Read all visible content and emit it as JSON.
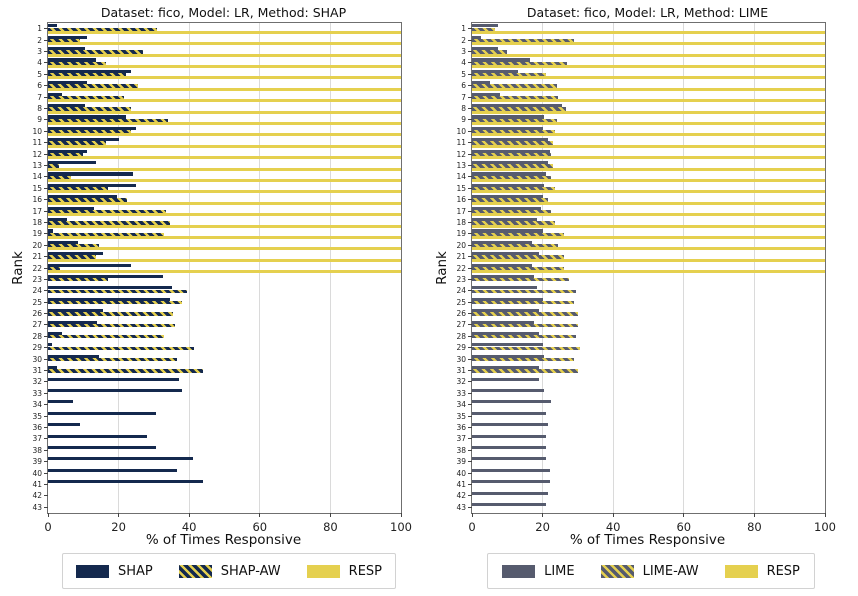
{
  "figure": {
    "background": "#ffffff",
    "colors": {
      "shap_navy": "#14294e",
      "lime_slate": "#565b6e",
      "resp_yellow": "#e5d04f",
      "gridline": "#dadada",
      "axis_border": "#6f6f6f"
    }
  },
  "chart_data": [
    {
      "type": "bar",
      "orientation": "horizontal",
      "title": "Dataset: fico, Model: LR, Method: SHAP",
      "xlabel": "% of Times Responsive",
      "ylabel": "Rank",
      "xlim": [
        0,
        100
      ],
      "xticks": [
        0,
        20,
        40,
        60,
        80,
        100
      ],
      "grid": "vertical",
      "legend_position": "bottom",
      "categories": [
        "1",
        "2",
        "3",
        "4",
        "5",
        "6",
        "7",
        "8",
        "9",
        "10",
        "11",
        "12",
        "13",
        "14",
        "15",
        "16",
        "17",
        "18",
        "19",
        "20",
        "21",
        "22",
        "23",
        "24",
        "25",
        "26",
        "27",
        "28",
        "29",
        "30",
        "31",
        "32",
        "33",
        "34",
        "35",
        "36",
        "37",
        "38",
        "39",
        "40",
        "41",
        "42",
        "43"
      ],
      "series": [
        {
          "name": "SHAP",
          "style": "solid",
          "color": "#14294e",
          "values": [
            2.5,
            11,
            10.5,
            13.5,
            23.5,
            11,
            4,
            10.5,
            22,
            25,
            20,
            11,
            13.5,
            24,
            25,
            19.5,
            13,
            5.5,
            1.5,
            8.5,
            15.5,
            23.5,
            32.5,
            35,
            34.5,
            15.5,
            14,
            4,
            1,
            14.5,
            2.5,
            37,
            38,
            7,
            30.5,
            9,
            28,
            30.5,
            41,
            36.5,
            44,
            0,
            0
          ]
        },
        {
          "name": "SHAP-AW",
          "style": "hatched",
          "color": "#14294e",
          "stripe": "#e5d04f",
          "values": [
            31,
            9,
            27,
            16.5,
            22,
            25.5,
            21.5,
            23.5,
            34,
            23.5,
            16.5,
            10,
            3,
            6.5,
            17,
            22.5,
            33.5,
            34.5,
            33,
            14.5,
            13.5,
            3.5,
            17,
            39.5,
            38,
            35.5,
            36,
            33,
            41.5,
            36.5,
            44,
            0,
            0,
            0,
            0,
            0,
            0,
            0,
            0,
            0,
            0,
            0,
            0
          ]
        },
        {
          "name": "RESP",
          "style": "solid",
          "color": "#e5d04f",
          "values": [
            100,
            100,
            100,
            100,
            100,
            100,
            100,
            100,
            100,
            100,
            100,
            100,
            100,
            100,
            100,
            100,
            100,
            100,
            100,
            100,
            100,
            100,
            0,
            0,
            0,
            0,
            0,
            0,
            0,
            0,
            0,
            0,
            0,
            0,
            0,
            0,
            0,
            0,
            0,
            0,
            0,
            0,
            0
          ]
        }
      ]
    },
    {
      "type": "bar",
      "orientation": "horizontal",
      "title": "Dataset: fico, Model: LR, Method: LIME",
      "xlabel": "% of Times Responsive",
      "ylabel": "Rank",
      "xlim": [
        0,
        100
      ],
      "xticks": [
        0,
        20,
        40,
        60,
        80,
        100
      ],
      "grid": "vertical",
      "legend_position": "bottom",
      "categories": [
        "1",
        "2",
        "3",
        "4",
        "5",
        "6",
        "7",
        "8",
        "9",
        "10",
        "11",
        "12",
        "13",
        "14",
        "15",
        "16",
        "17",
        "18",
        "19",
        "20",
        "21",
        "22",
        "23",
        "24",
        "25",
        "26",
        "27",
        "28",
        "29",
        "30",
        "31",
        "32",
        "33",
        "34",
        "35",
        "36",
        "37",
        "38",
        "39",
        "40",
        "41",
        "42",
        "43"
      ],
      "series": [
        {
          "name": "LIME",
          "style": "solid",
          "color": "#565b6e",
          "values": [
            7.5,
            2.5,
            7.5,
            16.5,
            13,
            5,
            8,
            25.5,
            20.5,
            20,
            21.5,
            22,
            21.5,
            21,
            20.5,
            20,
            19.5,
            18.5,
            20,
            17,
            19,
            17,
            17.5,
            18.5,
            20,
            19,
            17.5,
            19,
            20,
            20.5,
            19,
            19,
            20.5,
            22.5,
            21,
            21.5,
            21,
            21,
            21,
            22,
            22,
            21.5,
            21
          ]
        },
        {
          "name": "LIME-AW",
          "style": "hatched",
          "color": "#565b6e",
          "stripe": "#e5d04f",
          "values": [
            6.5,
            29,
            10,
            27,
            21,
            24,
            24.5,
            26.5,
            24,
            23.5,
            23,
            22.5,
            23,
            22.5,
            23.5,
            21.5,
            22.5,
            23.5,
            26,
            24.5,
            26,
            26,
            27.5,
            29.5,
            29,
            30,
            30,
            29.5,
            30.5,
            29,
            30,
            0,
            0,
            0,
            0,
            0,
            0,
            0,
            0,
            0,
            0,
            0,
            0
          ]
        },
        {
          "name": "RESP",
          "style": "solid",
          "color": "#e5d04f",
          "values": [
            100,
            100,
            100,
            100,
            100,
            100,
            100,
            100,
            100,
            100,
            100,
            100,
            100,
            100,
            100,
            100,
            100,
            100,
            100,
            100,
            100,
            100,
            0,
            0,
            0,
            0,
            0,
            0,
            0,
            0,
            0,
            0,
            0,
            0,
            0,
            0,
            0,
            0,
            0,
            0,
            0,
            0,
            0
          ]
        }
      ]
    }
  ]
}
